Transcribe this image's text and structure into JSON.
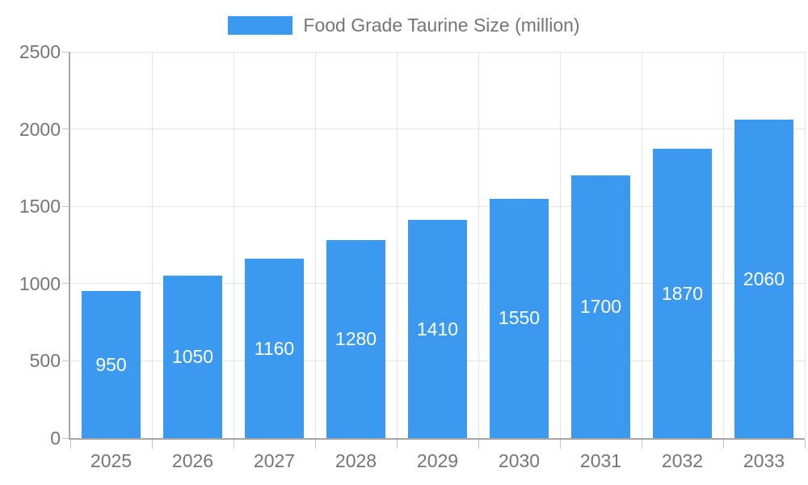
{
  "legend": {
    "label": "Food Grade Taurine Size (million)"
  },
  "colors": {
    "background": "#FFFFFF",
    "bar": "#3B9AF0",
    "axis_line": "#A6A6A6",
    "grid_line": "#E3E3E3",
    "tick": "#C4C4C4",
    "axis_text": "#757575",
    "bar_label_text": "#FFFFFF"
  },
  "chart_data": {
    "type": "bar",
    "title": "Food Grade Taurine Size (million)",
    "series_name": "Food Grade Taurine Size (million)",
    "categories": [
      "2025",
      "2026",
      "2027",
      "2028",
      "2029",
      "2030",
      "2031",
      "2032",
      "2033"
    ],
    "values": [
      950,
      1050,
      1160,
      1280,
      1410,
      1550,
      1700,
      1870,
      2060
    ],
    "bar_labels": [
      950,
      1050,
      1160,
      1280,
      1410,
      1550,
      1700,
      1870,
      2060
    ],
    "xlabel": "",
    "ylabel": "",
    "ylim": [
      0,
      2500
    ],
    "yticks": [
      0,
      500,
      1000,
      1500,
      2000,
      2500
    ],
    "grid": true,
    "legend_position": "top"
  }
}
